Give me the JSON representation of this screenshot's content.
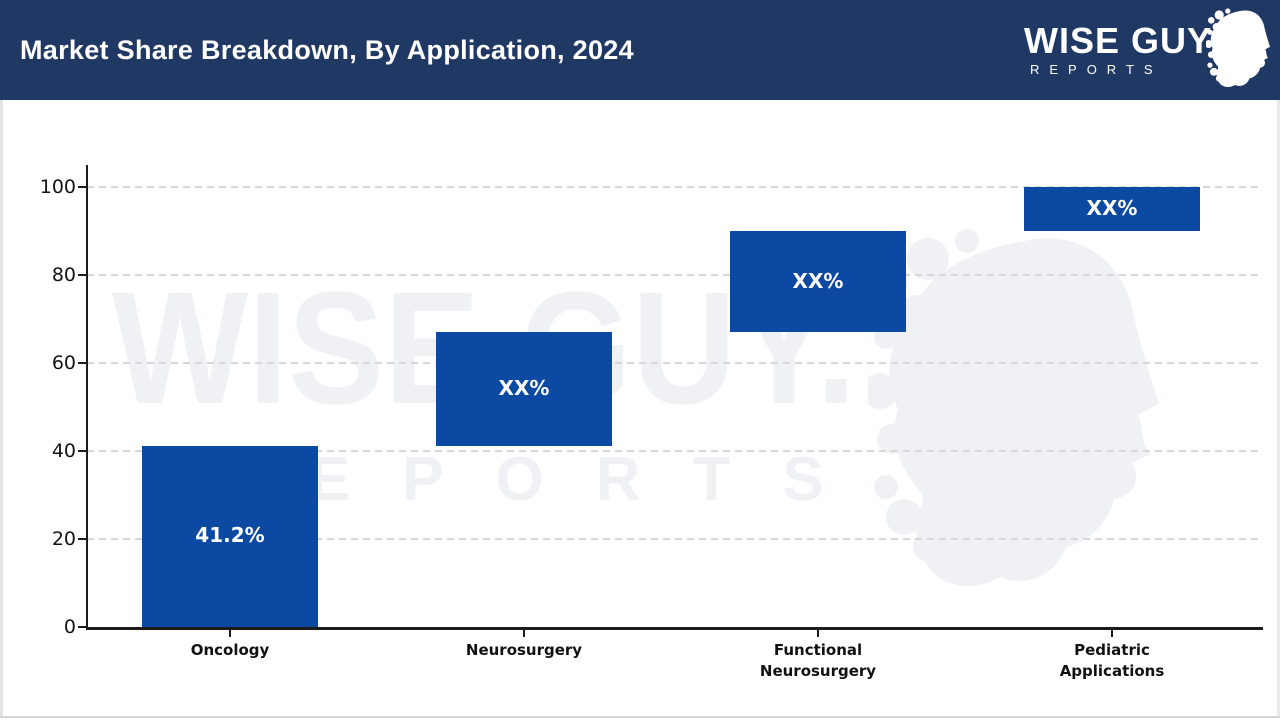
{
  "header": {
    "title": "Market Share Breakdown, By Application, 2024",
    "logo": {
      "title": "WISE GUY",
      "subtitle": "REPORTS"
    }
  },
  "watermark": {
    "line1": "WISE GUY.",
    "line2": "REPORTS"
  },
  "chart_data": {
    "type": "bar",
    "subtype": "waterfall",
    "title": "Market Share Breakdown, By Application, 2024",
    "categories": [
      "Oncology",
      "Neurosurgery",
      "Functional\nNeurosurgery",
      "Pediatric\nApplications"
    ],
    "series": [
      {
        "name": "Market share (%)",
        "segments": [
          {
            "category": "Oncology",
            "start": 0,
            "end": 41.2,
            "label": "41.2%"
          },
          {
            "category": "Neurosurgery",
            "start": 41.2,
            "end": 67,
            "label": "XX%"
          },
          {
            "category": "Functional Neurosurgery",
            "start": 67,
            "end": 90,
            "label": "XX%"
          },
          {
            "category": "Pediatric Applications",
            "start": 90,
            "end": 100,
            "label": "XX%"
          }
        ]
      }
    ],
    "xlabel": "",
    "ylabel": "",
    "ylim": [
      0,
      105
    ],
    "yticks": [
      0,
      20,
      40,
      60,
      80,
      100
    ],
    "grid": "horizontal-dashed",
    "legend": "none",
    "colors": {
      "bar": "#0c49a3",
      "bar_label": "#ffffff",
      "header_bg": "#203864",
      "axis": "#1c1c1c",
      "gridline": "#d7d7d7",
      "tick_label": "#141414",
      "watermark": "#eff1f4"
    }
  }
}
